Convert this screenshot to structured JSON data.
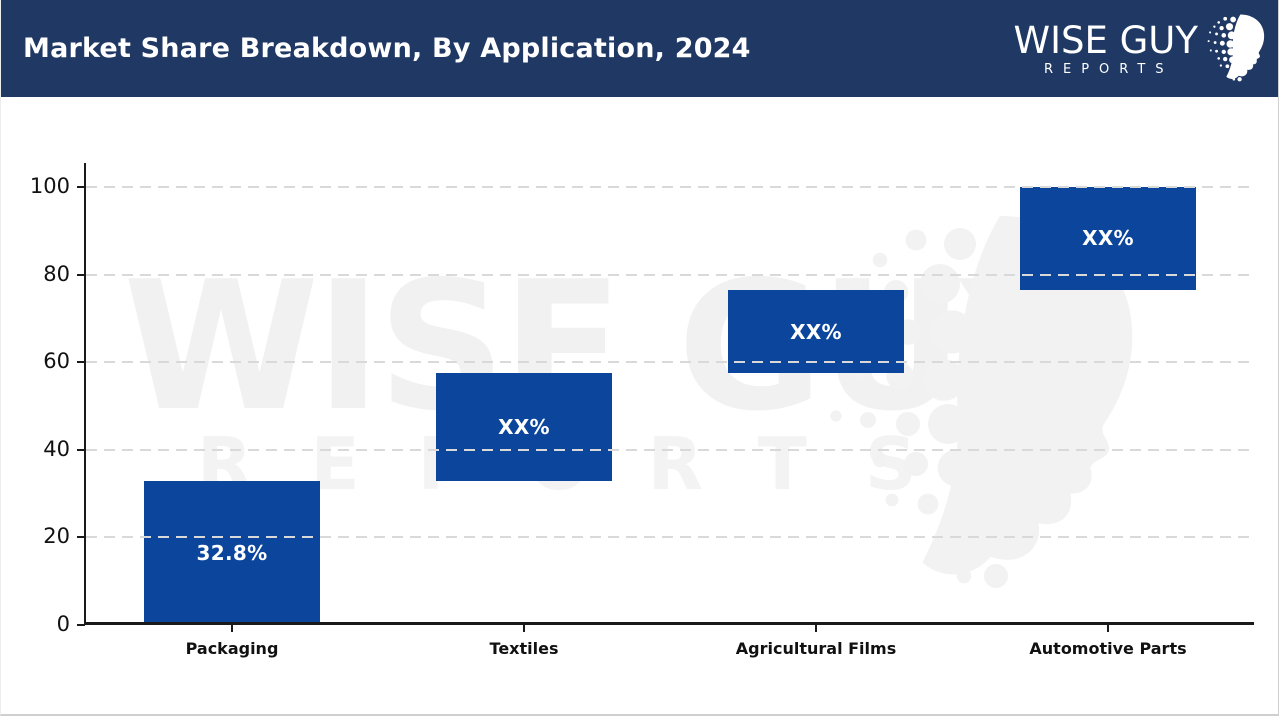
{
  "header": {
    "title": "Market Share Breakdown, By Application, 2024",
    "logo": {
      "line1": "WISE GUY",
      "line2": "REPORTS"
    }
  },
  "watermark": {
    "line1": "WISE GUY",
    "line2": "REPORTS"
  },
  "chart_data": {
    "type": "bar",
    "subtype": "waterfall",
    "title": "Market Share Breakdown, By Application, 2024",
    "categories": [
      "Packaging",
      "Textiles",
      "Agricultural Films",
      "Automotive Parts"
    ],
    "series": [
      {
        "name": "Market Share (%)",
        "segments": [
          {
            "category": "Packaging",
            "start": 0,
            "end": 32.8,
            "label": "32.8%"
          },
          {
            "category": "Textiles",
            "start": 32.8,
            "end": 57.5,
            "label": "XX%"
          },
          {
            "category": "Agricultural Films",
            "start": 57.5,
            "end": 76.5,
            "label": "XX%"
          },
          {
            "category": "Automotive Parts",
            "start": 76.5,
            "end": 100,
            "label": "XX%"
          }
        ]
      }
    ],
    "xlabel": "",
    "ylabel": "",
    "ylim": [
      0,
      105
    ],
    "yticks": [
      0,
      20,
      40,
      60,
      80,
      100
    ],
    "grid": "horizontal-dashed",
    "legend": "none",
    "colors": {
      "bar": "#0b459c",
      "bar_label": "#ffffff",
      "grid": "#d9d9d9",
      "axis": "#1a1a1a",
      "header_bg": "#1f3864",
      "header_text": "#ffffff",
      "watermark": "#f1f1f1"
    }
  }
}
